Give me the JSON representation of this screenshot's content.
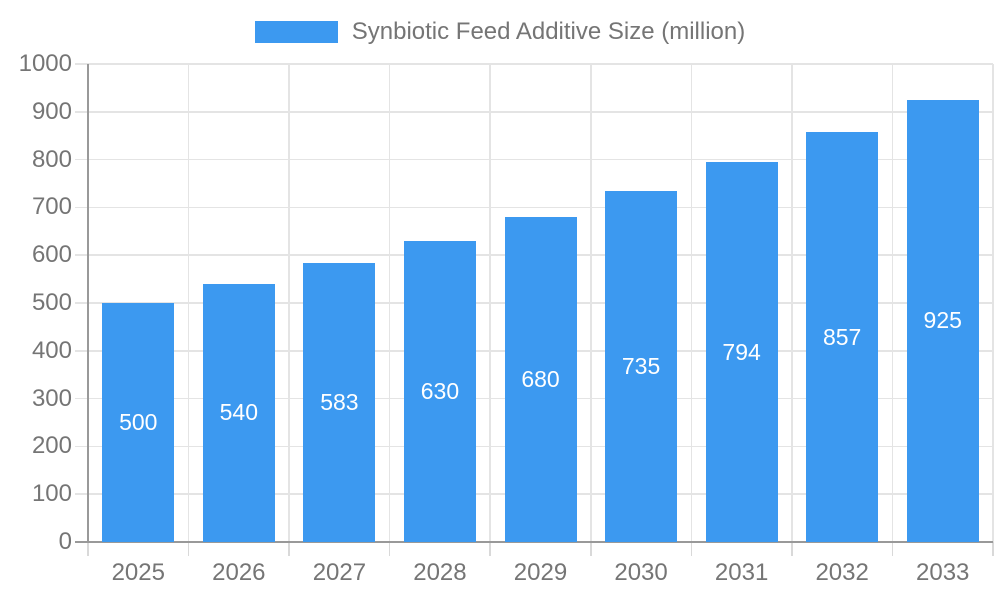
{
  "legend": {
    "label": "Synbiotic Feed Additive Size (million)"
  },
  "chart_data": {
    "type": "bar",
    "title": "Synbiotic Feed Additive Size (million)",
    "categories": [
      "2025",
      "2026",
      "2027",
      "2028",
      "2029",
      "2030",
      "2031",
      "2032",
      "2033"
    ],
    "series": [
      {
        "name": "Synbiotic Feed Additive Size (million)",
        "values": [
          500,
          540,
          583,
          630,
          680,
          735,
          794,
          857,
          925
        ]
      }
    ],
    "xlabel": "",
    "ylabel": "",
    "ylim": [
      0,
      1000
    ],
    "ytick_step": 100,
    "grid": true,
    "legend_position": "top"
  },
  "colors": {
    "bar": "#3C99F0",
    "bar_label": "#FFFFFF",
    "axis": "#999999",
    "gridline": "#E4E4E4",
    "tick": "#D9D9D9",
    "text": "#757575",
    "background": "#FFFFFF"
  }
}
